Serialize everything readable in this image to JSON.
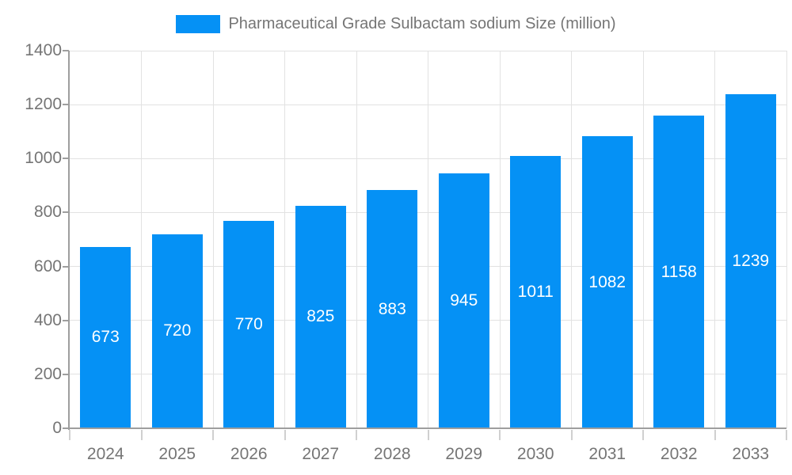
{
  "chart_data": {
    "type": "bar",
    "title": "Pharmaceutical Grade Sulbactam sodium Size (million)",
    "categories": [
      "2024",
      "2025",
      "2026",
      "2027",
      "2028",
      "2029",
      "2030",
      "2031",
      "2032",
      "2033"
    ],
    "values": [
      673,
      720,
      770,
      825,
      883,
      945,
      1011,
      1082,
      1158,
      1239
    ],
    "xlabel": "",
    "ylabel": "",
    "ylim": [
      0,
      1400
    ],
    "yticks": [
      0,
      200,
      400,
      600,
      800,
      1000,
      1200,
      1400
    ],
    "grid": true,
    "legend_position": "top-center",
    "value_labels": "inside-center",
    "colors": {
      "bar": "#0591f5",
      "value_label": "#ffffff",
      "axis_text": "#757575",
      "grid_line": "#e2e2e2",
      "axis_line": "#9e9e9e",
      "background": "#ffffff"
    }
  }
}
